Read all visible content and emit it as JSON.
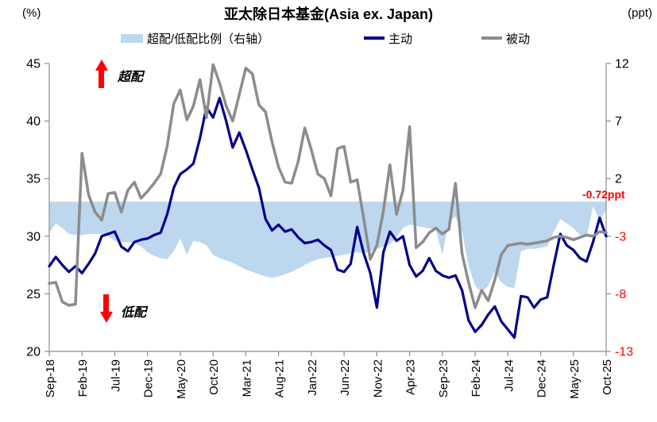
{
  "header": {
    "left_unit": "(%)",
    "title": "亚太除日本基金(Asia ex. Japan)",
    "right_unit": "(ppt)"
  },
  "legend": [
    {
      "label": "超配/低配比例（右轴）",
      "swatch": "area",
      "color": "#BDD7EE"
    },
    {
      "label": "主动",
      "swatch": "line",
      "color": "#00008B"
    },
    {
      "label": "被动",
      "swatch": "line",
      "color": "#8C8C8C"
    }
  ],
  "annotations": {
    "overweight_label": "超配",
    "underweight_label": "低配",
    "last_value_label": "-0.72ppt"
  },
  "colors": {
    "active_line": "#00008B",
    "passive_line": "#8C8C8C",
    "ratio_area": "#BDD7EE",
    "axis": "#8C8C8C",
    "negative_tick": "#FF0000",
    "annotation_red": "#FF0000",
    "text": "#000000"
  },
  "chart_data": {
    "type": "composite",
    "title": "亚太除日本基金(Asia ex. Japan)",
    "grid": false,
    "left_axis": {
      "unit": "%",
      "min": 20,
      "max": 45,
      "ticks": [
        45,
        40,
        35,
        30,
        25,
        20
      ]
    },
    "right_axis": {
      "unit": "ppt",
      "min": -13,
      "max": 12,
      "ticks": [
        12,
        7,
        2,
        -3,
        -8,
        -13
      ]
    },
    "x_tick_labels": [
      "Sep-18",
      "Feb-19",
      "Jul-19",
      "Dec-19",
      "May-20",
      "Oct-20",
      "Mar-21",
      "Aug-21",
      "Jan-22",
      "Jun-22",
      "Nov-22",
      "Apr-23",
      "Sep-23",
      "Feb-24",
      "Jul-24",
      "Dec-24",
      "May-25",
      "Oct-25"
    ],
    "x_tick_step": 5,
    "categories": [
      "Sep-18",
      "Oct-18",
      "Nov-18",
      "Dec-18",
      "Jan-19",
      "Feb-19",
      "Mar-19",
      "Apr-19",
      "May-19",
      "Jun-19",
      "Jul-19",
      "Aug-19",
      "Sep-19",
      "Oct-19",
      "Nov-19",
      "Dec-19",
      "Jan-20",
      "Feb-20",
      "Mar-20",
      "Apr-20",
      "May-20",
      "Jun-20",
      "Jul-20",
      "Aug-20",
      "Sep-20",
      "Oct-20",
      "Nov-20",
      "Dec-20",
      "Jan-21",
      "Feb-21",
      "Mar-21",
      "Apr-21",
      "May-21",
      "Jun-21",
      "Jul-21",
      "Aug-21",
      "Sep-21",
      "Oct-21",
      "Nov-21",
      "Dec-21",
      "Jan-22",
      "Feb-22",
      "Mar-22",
      "Apr-22",
      "May-22",
      "Jun-22",
      "Jul-22",
      "Aug-22",
      "Sep-22",
      "Oct-22",
      "Nov-22",
      "Dec-22",
      "Jan-23",
      "Feb-23",
      "Mar-23",
      "Apr-23",
      "May-23",
      "Jun-23",
      "Jul-23",
      "Aug-23",
      "Sep-23",
      "Oct-23",
      "Nov-23",
      "Dec-23",
      "Jan-24",
      "Feb-24",
      "Mar-24",
      "Apr-24",
      "May-24",
      "Jun-24",
      "Jul-24",
      "Aug-24",
      "Sep-24",
      "Oct-24",
      "Nov-24",
      "Dec-24",
      "Jan-25",
      "Feb-25",
      "Mar-25",
      "Apr-25",
      "May-25",
      "Jun-25",
      "Jul-25",
      "Aug-25",
      "Sep-25",
      "Oct-25"
    ],
    "series": [
      {
        "name": "超配/低配比例（右轴）",
        "axis": "right",
        "type": "area",
        "values": [
          -2.7,
          -1.9,
          -2.3,
          -2.8,
          -2.9,
          -2.9,
          -2.8,
          -2.8,
          -2.8,
          -3.0,
          -3.4,
          -3.5,
          -3.5,
          -3.6,
          -3.9,
          -4.4,
          -4.7,
          -4.9,
          -5.0,
          -4.3,
          -3.2,
          -4.6,
          -3.4,
          -3.5,
          -3.8,
          -4.6,
          -4.9,
          -5.1,
          -5.3,
          -5.6,
          -5.9,
          -6.1,
          -6.3,
          -6.5,
          -6.6,
          -6.5,
          -6.3,
          -6.1,
          -5.8,
          -5.5,
          -5.2,
          -5.0,
          -4.9,
          -4.8,
          -4.7,
          -4.6,
          -4.5,
          -4.4,
          -4.5,
          -4.3,
          -4.1,
          -3.9,
          -3.7,
          -3.1,
          -2.3,
          -2.0,
          -2.1,
          -2.2,
          -2.3,
          -2.4,
          -4.6,
          -1.7,
          -1.3,
          -2.6,
          -5.6,
          -7.3,
          -7.9,
          -7.3,
          -6.1,
          -7.0,
          -7.4,
          -7.5,
          -4.3,
          -4.1,
          -4.1,
          -4.0,
          -3.9,
          -2.6,
          -1.5,
          -1.9,
          -2.3,
          -2.9,
          -3.1,
          -0.4,
          -1.6,
          -0.72
        ],
        "last_value": -0.72
      },
      {
        "name": "主动",
        "axis": "left",
        "type": "line",
        "values": [
          27.4,
          28.2,
          27.5,
          26.9,
          27.4,
          26.8,
          27.6,
          28.5,
          30.0,
          30.2,
          30.4,
          29.1,
          28.7,
          29.5,
          29.7,
          29.8,
          30.1,
          30.3,
          31.9,
          34.2,
          35.4,
          35.8,
          36.3,
          38.5,
          41.2,
          40.3,
          42.0,
          40.0,
          37.7,
          39.0,
          37.5,
          35.8,
          34.2,
          31.5,
          30.5,
          31.0,
          30.4,
          30.6,
          29.9,
          29.4,
          29.5,
          29.7,
          29.2,
          28.8,
          27.1,
          26.9,
          27.6,
          30.8,
          28.5,
          26.8,
          23.8,
          28.6,
          30.4,
          29.6,
          30.0,
          27.5,
          26.5,
          27.0,
          28.1,
          27.0,
          26.6,
          26.4,
          26.6,
          25.3,
          22.7,
          21.7,
          22.3,
          23.2,
          23.9,
          22.6,
          21.9,
          21.2,
          24.8,
          24.7,
          23.8,
          24.5,
          24.7,
          27.5,
          30.2,
          29.2,
          28.8,
          28.1,
          27.8,
          29.5,
          31.6,
          30.0
        ]
      },
      {
        "name": "被动",
        "axis": "left",
        "type": "line",
        "values": [
          25.9,
          26.0,
          24.3,
          24.0,
          24.1,
          37.2,
          33.6,
          32.1,
          31.4,
          33.7,
          33.8,
          32.1,
          34.0,
          34.7,
          33.3,
          33.9,
          34.6,
          35.4,
          37.8,
          41.5,
          42.7,
          40.1,
          41.3,
          43.6,
          40.3,
          44.9,
          43.3,
          41.3,
          40.0,
          42.3,
          44.6,
          44.1,
          41.4,
          40.8,
          38.2,
          36.0,
          34.7,
          34.6,
          36.5,
          39.4,
          37.5,
          35.4,
          35.0,
          33.5,
          37.6,
          37.8,
          34.7,
          34.9,
          31.5,
          28.0,
          29.2,
          32.2,
          36.2,
          31.9,
          34.0,
          39.5,
          29.0,
          29.5,
          30.3,
          30.7,
          30.2,
          30.6,
          34.6,
          28.5,
          26.0,
          23.8,
          25.3,
          24.4,
          26.2,
          28.4,
          29.2,
          29.3,
          29.4,
          29.3,
          29.4,
          29.5,
          29.6,
          29.9,
          30.0,
          29.9,
          29.7,
          29.9,
          30.1,
          30.0,
          30.4,
          30.3
        ]
      }
    ]
  }
}
